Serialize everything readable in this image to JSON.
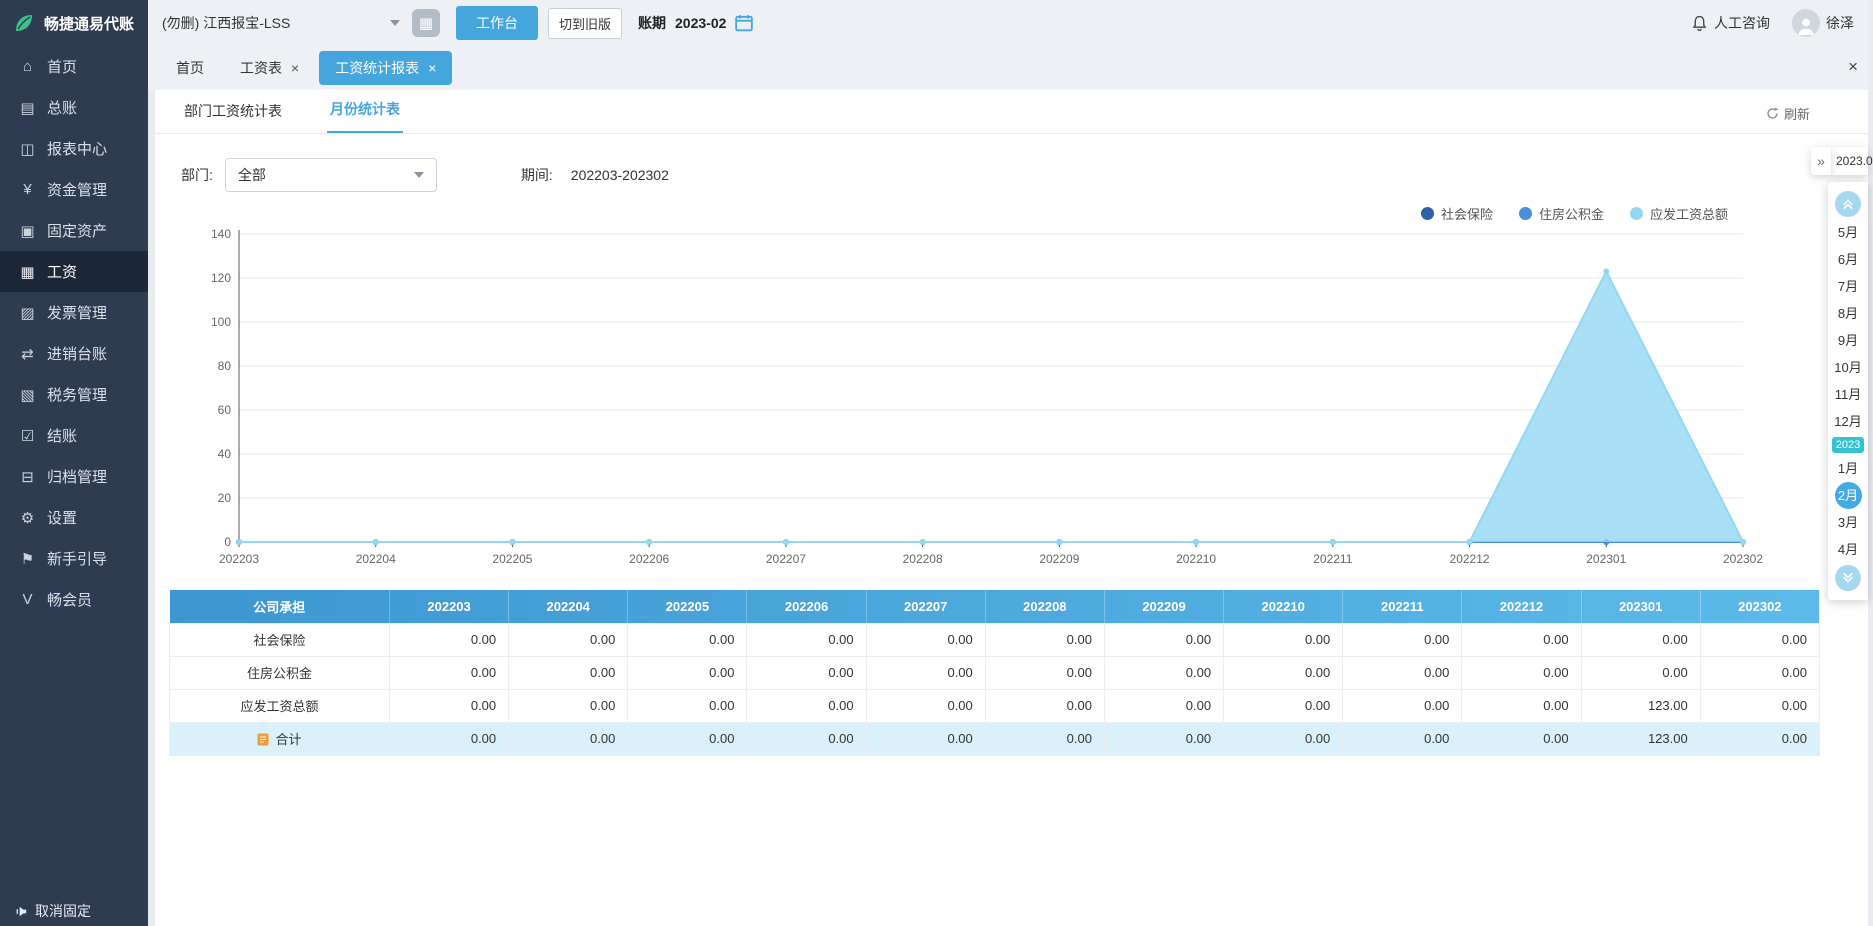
{
  "colors": {
    "accent_blue": "#45a5dd",
    "sidebar_bg": "#2e3c52",
    "table_header_blue": "#48a4da",
    "total_row_bg": "#daf0fb"
  },
  "sidebar": {
    "logo_text": "畅捷通易代账",
    "unpin_label": "取消固定",
    "items": [
      {
        "label": "首页",
        "icon": "home-icon",
        "active": false
      },
      {
        "label": "总账",
        "icon": "general-ledger-icon",
        "active": false
      },
      {
        "label": "报表中心",
        "icon": "report-center-icon",
        "active": false
      },
      {
        "label": "资金管理",
        "icon": "funds-icon",
        "active": false
      },
      {
        "label": "固定资产",
        "icon": "fixed-assets-icon",
        "active": false
      },
      {
        "label": "工资",
        "icon": "salary-icon",
        "active": true
      },
      {
        "label": "发票管理",
        "icon": "invoice-icon",
        "active": false
      },
      {
        "label": "进销台账",
        "icon": "purchase-sales-icon",
        "active": false
      },
      {
        "label": "税务管理",
        "icon": "tax-icon",
        "active": false
      },
      {
        "label": "结账",
        "icon": "closing-icon",
        "active": false
      },
      {
        "label": "归档管理",
        "icon": "archive-icon",
        "active": false
      },
      {
        "label": "设置",
        "icon": "settings-icon",
        "active": false
      },
      {
        "label": "新手引导",
        "icon": "guide-icon",
        "active": false
      },
      {
        "label": "畅会员",
        "icon": "member-icon",
        "active": false
      }
    ]
  },
  "topbar": {
    "company_selector_value": "(勿删) 江西报宝-LSS",
    "workbench_button": "工作台",
    "switch_old_version_button": "切到旧版",
    "period_label": "账期",
    "period_value": "2023-02",
    "consult_label": "人工咨询",
    "user_name": "徐泽"
  },
  "tabbar": {
    "tabs": [
      {
        "label": "首页",
        "closable": false,
        "active": false
      },
      {
        "label": "工资表",
        "closable": true,
        "active": false
      },
      {
        "label": "工资统计报表",
        "closable": true,
        "active": true
      }
    ]
  },
  "report": {
    "subtabs": [
      {
        "label": "部门工资统计表",
        "active": false
      },
      {
        "label": "月份统计表",
        "active": true
      }
    ],
    "refresh_label": "刷新",
    "department_label": "部门:",
    "department_value": "全部",
    "period_label": "期间:",
    "period_range": "202203-202302"
  },
  "chart_data": {
    "type": "area",
    "x": [
      "202203",
      "202204",
      "202205",
      "202206",
      "202207",
      "202208",
      "202209",
      "202210",
      "202211",
      "202212",
      "202301",
      "202302"
    ],
    "series": [
      {
        "name": "社会保险",
        "color": "#2d62a8",
        "values": [
          0,
          0,
          0,
          0,
          0,
          0,
          0,
          0,
          0,
          0,
          0,
          0
        ]
      },
      {
        "name": "住房公积金",
        "color": "#4a90d9",
        "values": [
          0,
          0,
          0,
          0,
          0,
          0,
          0,
          0,
          0,
          0,
          0,
          0
        ]
      },
      {
        "name": "应发工资总额",
        "color": "#93d7f3",
        "values": [
          0,
          0,
          0,
          0,
          0,
          0,
          0,
          0,
          0,
          0,
          123,
          0
        ]
      }
    ],
    "ylim": [
      0,
      140
    ],
    "yticks": [
      0,
      20,
      40,
      60,
      80,
      100,
      120,
      140
    ],
    "grid": true,
    "legend_position": "top-right"
  },
  "table": {
    "corner_header": "公司承担",
    "columns": [
      "202203",
      "202204",
      "202205",
      "202206",
      "202207",
      "202208",
      "202209",
      "202210",
      "202211",
      "202212",
      "202301",
      "202302"
    ],
    "rows": [
      {
        "label": "社会保险",
        "total": false,
        "values": [
          "0.00",
          "0.00",
          "0.00",
          "0.00",
          "0.00",
          "0.00",
          "0.00",
          "0.00",
          "0.00",
          "0.00",
          "0.00",
          "0.00"
        ]
      },
      {
        "label": "住房公积金",
        "total": false,
        "values": [
          "0.00",
          "0.00",
          "0.00",
          "0.00",
          "0.00",
          "0.00",
          "0.00",
          "0.00",
          "0.00",
          "0.00",
          "0.00",
          "0.00"
        ]
      },
      {
        "label": "应发工资总额",
        "total": false,
        "values": [
          "0.00",
          "0.00",
          "0.00",
          "0.00",
          "0.00",
          "0.00",
          "0.00",
          "0.00",
          "0.00",
          "0.00",
          "123.00",
          "0.00"
        ]
      },
      {
        "label": "合计",
        "total": true,
        "values": [
          "0.00",
          "0.00",
          "0.00",
          "0.00",
          "0.00",
          "0.00",
          "0.00",
          "0.00",
          "0.00",
          "0.00",
          "123.00",
          "0.00"
        ]
      }
    ]
  },
  "month_panel": {
    "tooltip": "2023.0",
    "expand_glyph": "»",
    "items": [
      {
        "type": "month",
        "label": "5月",
        "active": false
      },
      {
        "type": "month",
        "label": "6月",
        "active": false
      },
      {
        "type": "month",
        "label": "7月",
        "active": false
      },
      {
        "type": "month",
        "label": "8月",
        "active": false
      },
      {
        "type": "month",
        "label": "9月",
        "active": false
      },
      {
        "type": "month",
        "label": "10月",
        "active": false
      },
      {
        "type": "month",
        "label": "11月",
        "active": false
      },
      {
        "type": "month",
        "label": "12月",
        "active": false
      },
      {
        "type": "badge",
        "label": "2023",
        "active": false
      },
      {
        "type": "month",
        "label": "1月",
        "active": false
      },
      {
        "type": "month",
        "label": "2月",
        "active": true
      },
      {
        "type": "month",
        "label": "3月",
        "active": false
      },
      {
        "type": "month",
        "label": "4月",
        "active": false
      }
    ]
  },
  "misc": {
    "close_glyph": "×"
  }
}
